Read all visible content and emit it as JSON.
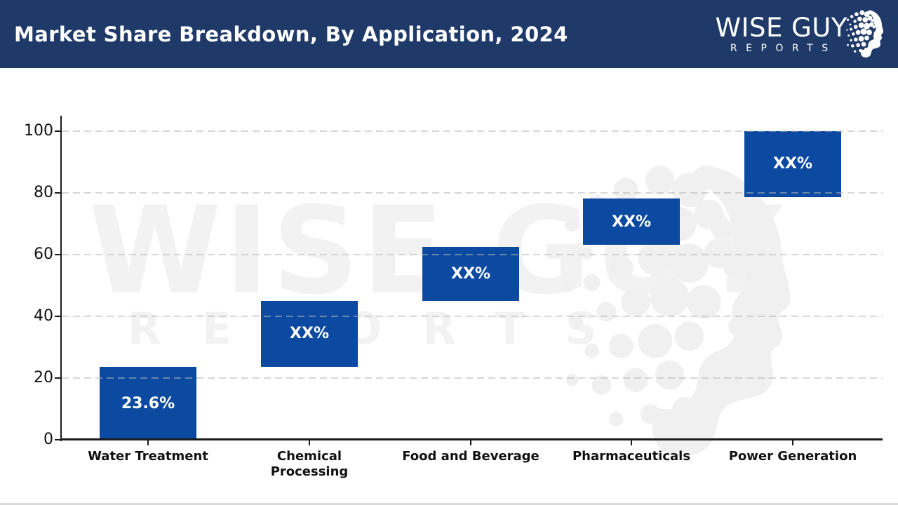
{
  "header": {
    "title": "Market Share Breakdown, By Application, 2024",
    "bg_color": "#1f3a68",
    "logo": {
      "line1": "WISE GUY",
      "line2": "REPORTS"
    }
  },
  "watermark": {
    "line1": "WISE GUY",
    "line2": "REPORTS"
  },
  "chart_data": {
    "type": "bar",
    "variant": "waterfall",
    "title": "Market Share Breakdown, By Application, 2024",
    "categories": [
      "Water Treatment",
      "Chemical Processing",
      "Food and Beverage",
      "Pharmaceuticals",
      "Power Generation"
    ],
    "x_labels_display": [
      "Water Treatment",
      "Chemical\nProcessing",
      "Food and Beverage",
      "Pharmaceuticals",
      "Power Generation"
    ],
    "segments": [
      {
        "category": "Water Treatment",
        "start": 0,
        "end": 23.6,
        "label": "23.6%"
      },
      {
        "category": "Chemical Processing",
        "start": 23.6,
        "end": 45,
        "label": "XX%"
      },
      {
        "category": "Food and Beverage",
        "start": 45,
        "end": 62.5,
        "label": "XX%"
      },
      {
        "category": "Pharmaceuticals",
        "start": 63,
        "end": 78,
        "label": "XX%"
      },
      {
        "category": "Power Generation",
        "start": 78.5,
        "end": 100,
        "label": "XX%"
      }
    ],
    "bar_labels": [
      "23.6%",
      "XX%",
      "XX%",
      "XX%",
      "XX%"
    ],
    "y_ticks": [
      0,
      20,
      40,
      60,
      80,
      100
    ],
    "ylim": [
      0,
      104
    ],
    "xlabel": "",
    "ylabel": "",
    "grid": "horizontal-dashed",
    "legend": "none",
    "bar_color": "#0b4aa0",
    "bar_label_color": "#ffffff",
    "axis_color": "#1a1a1a"
  }
}
